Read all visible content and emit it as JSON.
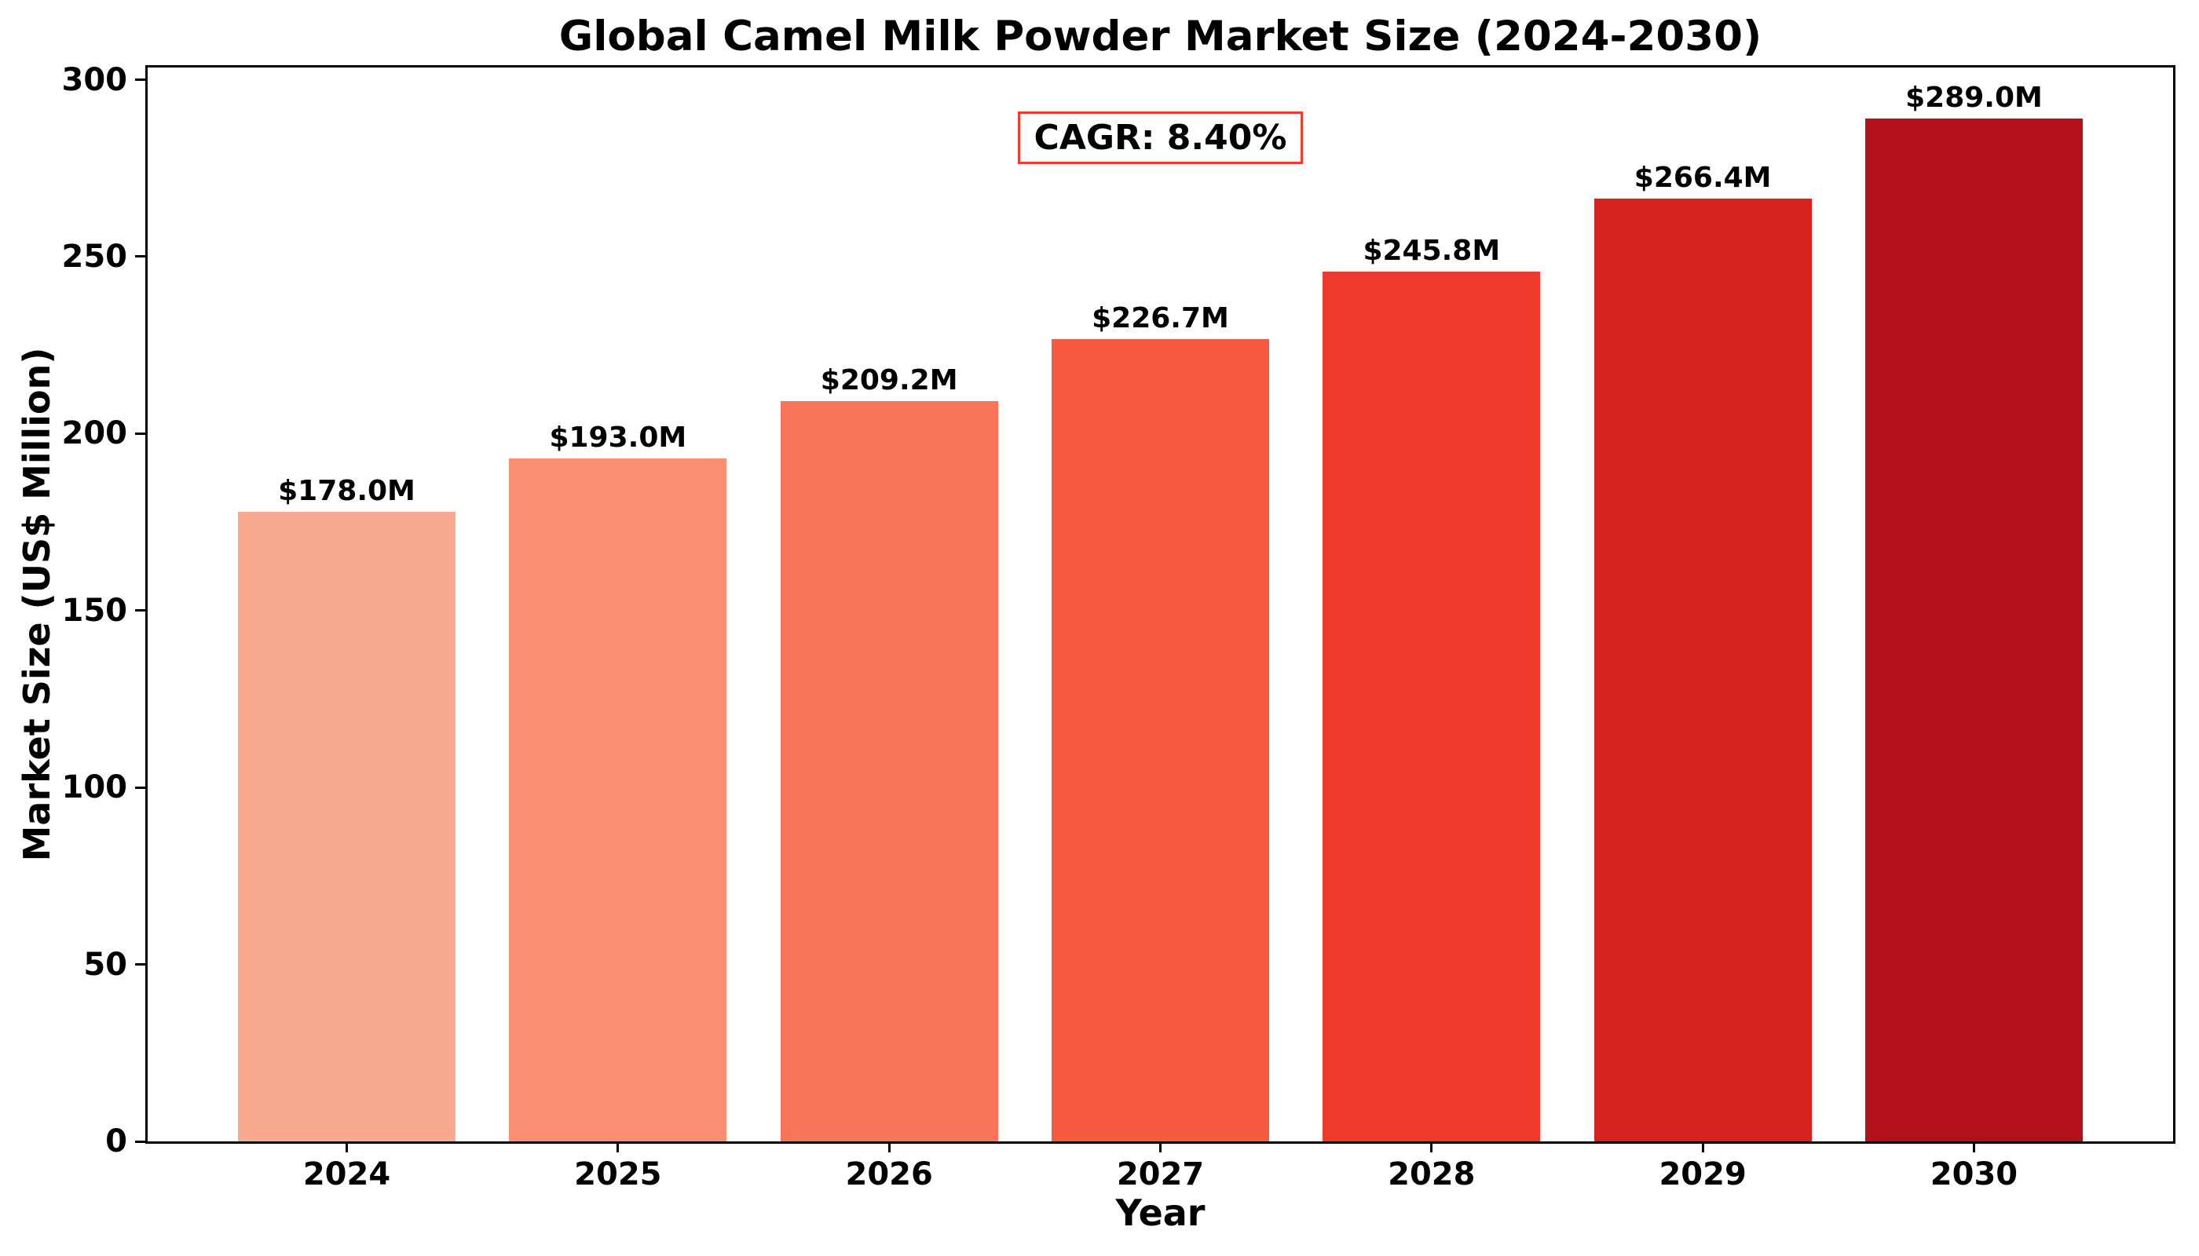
{
  "chart_data": {
    "type": "bar",
    "title": "Global Camel Milk Powder Market Size (2024-2030)",
    "xlabel": "Year",
    "ylabel": "Market Size (US$ Million)",
    "categories": [
      "2024",
      "2025",
      "2026",
      "2027",
      "2028",
      "2029",
      "2030"
    ],
    "values": [
      178.0,
      193.0,
      209.2,
      226.7,
      245.8,
      266.4,
      289.0
    ],
    "bar_labels": [
      "$178.0M",
      "$193.0M",
      "$209.2M",
      "$226.7M",
      "$245.8M",
      "$266.4M",
      "$289.0M"
    ],
    "bar_colors": [
      "#F9A98D",
      "#F98E73",
      "#F87559",
      "#F65A3F",
      "#EE392B",
      "#D52220",
      "#B21119"
    ],
    "ylim": [
      0,
      300
    ],
    "yticks": [
      0,
      50,
      100,
      150,
      200,
      250,
      300
    ],
    "grid": false,
    "legend": null,
    "annotation": {
      "text": "CAGR: 8.40%",
      "border_color": "#f2392c"
    }
  },
  "colors": {
    "background": "#FFFFFF",
    "axis": "#000000",
    "text": "#000000"
  }
}
